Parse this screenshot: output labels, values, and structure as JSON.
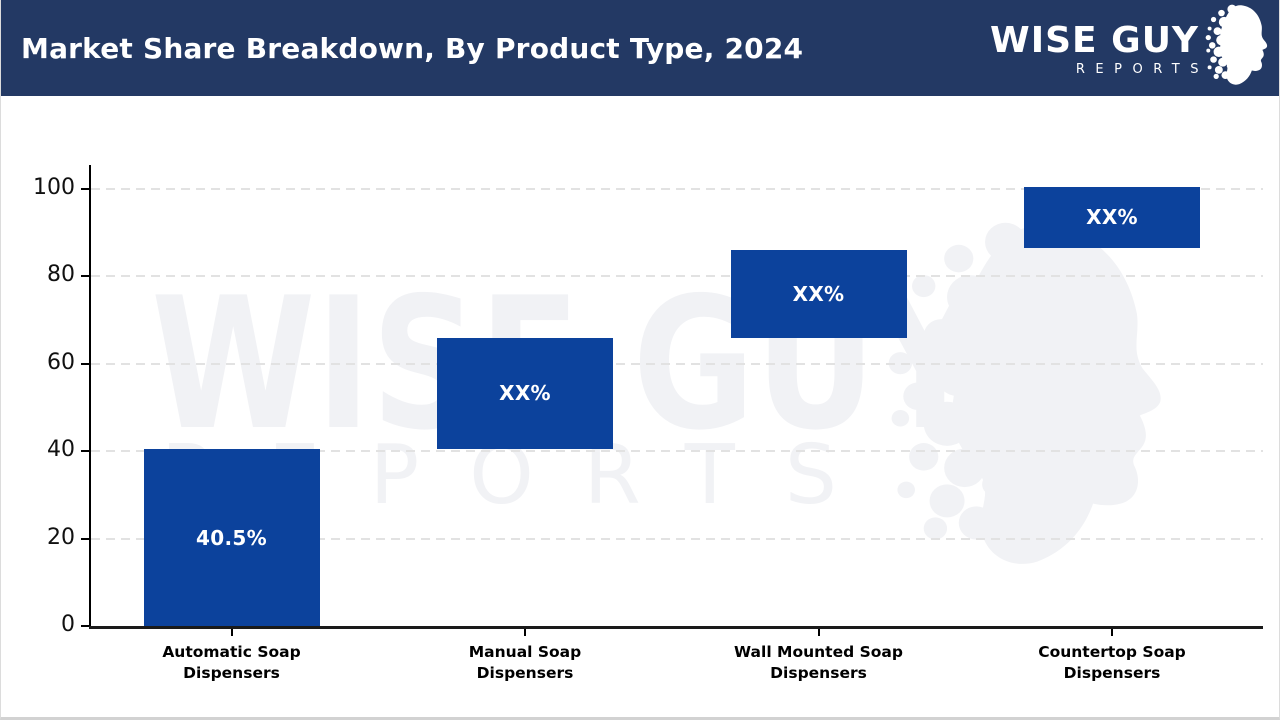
{
  "header": {
    "title": "Market Share Breakdown, By Product Type, 2024",
    "logo": {
      "brand": "WISE GUY",
      "sub": "REPORTS"
    }
  },
  "watermark": {
    "word": "WISE GUY",
    "sub": "REPORTS"
  },
  "colors": {
    "header_bg": "#233964",
    "bar_blue": "#0c429c",
    "watermark_gray": "#f1f2f5",
    "gridline": "#e2e2e2",
    "axis": "#000000"
  },
  "chart_data": {
    "type": "bar",
    "subtype": "waterfall",
    "title": "Market Share Breakdown, By Product Type, 2024",
    "categories": [
      "Automatic Soap\nDispensers",
      "Manual Soap\nDispensers",
      "Wall Mounted Soap\nDispensers",
      "Countertop Soap\nDispensers"
    ],
    "segments": [
      {
        "start": 0,
        "end": 40.5,
        "label": "40.5%"
      },
      {
        "start": 40.5,
        "end": 66,
        "label": "XX%"
      },
      {
        "start": 66,
        "end": 86,
        "label": "XX%"
      },
      {
        "start": 86.5,
        "end": 100.5,
        "label": "XX%"
      }
    ],
    "yticks": [
      0,
      20,
      40,
      60,
      80,
      100
    ],
    "ylim": [
      0,
      105.5
    ],
    "xlabel": "",
    "ylabel": "",
    "grid": true,
    "legend": false,
    "bar_color": "#0c429c",
    "bar_label_color": "#ffffff"
  }
}
